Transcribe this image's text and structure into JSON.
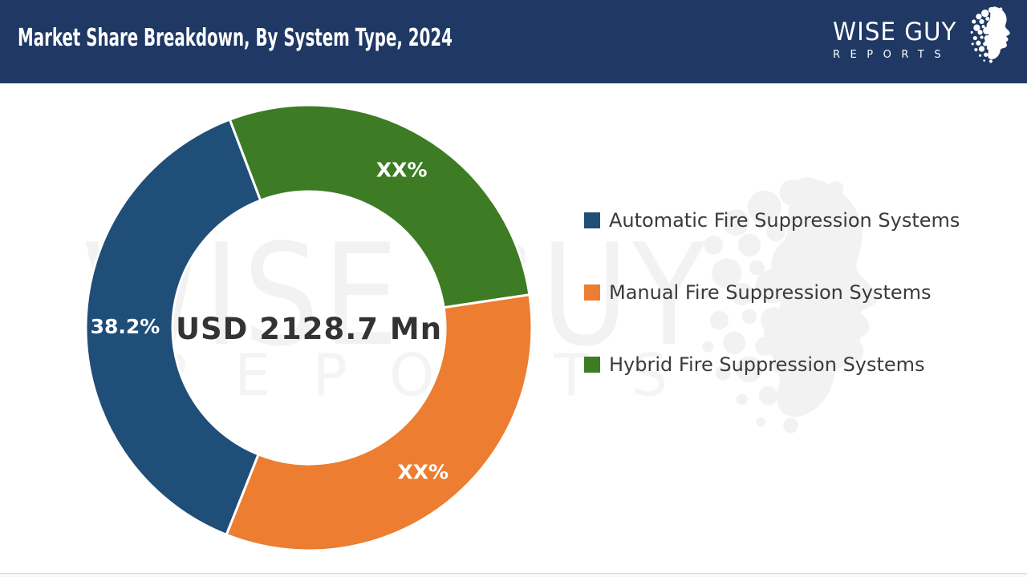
{
  "header": {
    "title": "Market Share Breakdown, By System Type, 2024",
    "logo": {
      "name": "WISE GUY",
      "sub": "REPORTS"
    }
  },
  "watermark": {
    "text": "WISE GUY",
    "sub": "REPORTS"
  },
  "chart_data": {
    "type": "pie",
    "subtype": "donut",
    "title": "Market Share Breakdown, By System Type, 2024",
    "center_label": "USD 2128.7 Mn",
    "unit": "percent",
    "start_angle_deg": 201.7,
    "draw_order": [
      0,
      2,
      1
    ],
    "legend_position": "right",
    "slices": [
      {
        "label": "Automatic Fire Suppression Systems",
        "value": 38.2,
        "display": "38.2%",
        "color": "#1F4E79"
      },
      {
        "label": "Manual Fire Suppression Systems",
        "value": 33.4,
        "display": "XX%",
        "color": "#EC7D31"
      },
      {
        "label": "Hybrid Fire Suppression Systems",
        "value": 28.4,
        "display": "XX%",
        "color": "#3D7C24"
      }
    ]
  },
  "colors": {
    "header_bg": "#1F3864",
    "slice_separator": "#FFFFFF",
    "center_text": "#333333",
    "legend_text": "#3A3A3A",
    "watermark": "#F2F2F2"
  }
}
